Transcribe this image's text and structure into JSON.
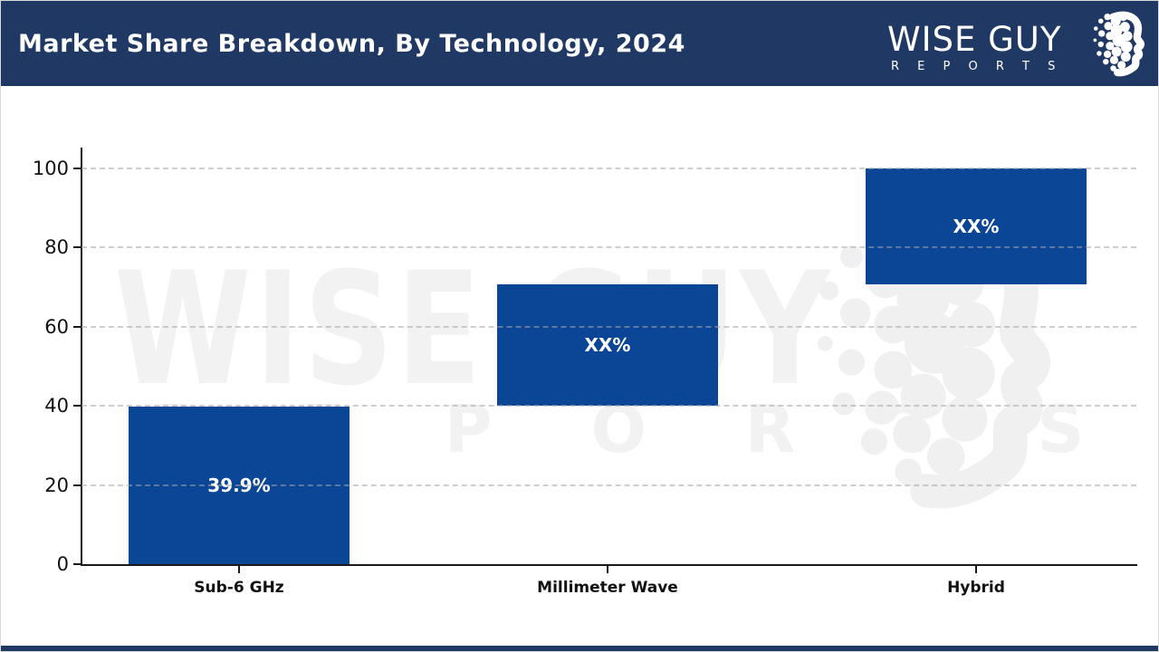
{
  "header": {
    "title": "Market Share Breakdown, By Technology, 2024",
    "logo": {
      "wordmark": "WISE GUY",
      "subtext": "R E P O R T S"
    }
  },
  "watermark": {
    "wordmark": "WISE GUY",
    "subtext": "R E P O R T S"
  },
  "chart_data": {
    "type": "bar",
    "subtype": "floating-waterfall",
    "title": "Market Share Breakdown, By Technology, 2024",
    "categories": [
      "Sub-6 GHz",
      "Millimeter Wave",
      "Hybrid"
    ],
    "segments": [
      {
        "category": "Sub-6 GHz",
        "start": 0,
        "end": 39.9,
        "label": "39.9%"
      },
      {
        "category": "Millimeter Wave",
        "start": 40,
        "end": 70.8,
        "label": "XX%"
      },
      {
        "category": "Hybrid",
        "start": 70.8,
        "end": 100,
        "label": "XX%"
      }
    ],
    "ylim": [
      0,
      100
    ],
    "yticks": [
      0,
      20,
      40,
      60,
      80,
      100
    ],
    "grid": {
      "horizontal": true,
      "style": "dashed",
      "drawn_over_bars": true
    },
    "legend": "none",
    "bar_color": "#0B4596",
    "bar_label_color": "#FFFFFF"
  },
  "colors": {
    "header_bg": "#203864",
    "footer_bg": "#203864",
    "bar": "#0B4596",
    "watermark": "#F2F2F2",
    "axis": "#1A1A1A",
    "gridline": "#A5A5A5"
  }
}
